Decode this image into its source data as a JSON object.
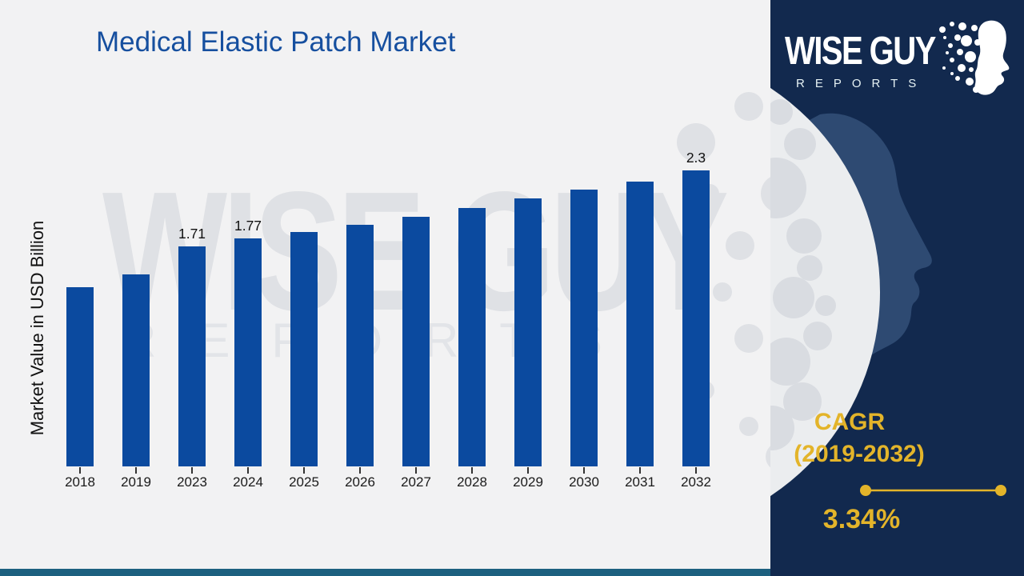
{
  "title": "Medical Elastic Patch Market",
  "y_axis_label": "Market Value in USD Billion",
  "logo": {
    "line1": "WISE GUY",
    "line2": "REPORTS"
  },
  "watermark": {
    "line1": "WISE GUY",
    "line2": "REPORTS"
  },
  "cagr": {
    "line1": "CAGR",
    "line2": "(2019-2032)",
    "value": "3.34%"
  },
  "colors": {
    "background": "#f2f2f3",
    "bar": "#0b4a9f",
    "title": "#164f9f",
    "panel_navy": "#12294e",
    "gold": "#e3b42a",
    "teal_stripe": "#1d607f",
    "watermark_gray": "#dfe1e5"
  },
  "chart_data": {
    "type": "bar",
    "title": "Medical Elastic Patch Market",
    "xlabel": "",
    "ylabel": "Market Value in USD Billion",
    "unit": "USD Billion",
    "categories": [
      "2018",
      "2019",
      "2023",
      "2024",
      "2025",
      "2026",
      "2027",
      "2028",
      "2029",
      "2030",
      "2031",
      "2032"
    ],
    "values": [
      1.39,
      1.49,
      1.71,
      1.77,
      1.82,
      1.88,
      1.94,
      2.01,
      2.08,
      2.15,
      2.21,
      2.3
    ],
    "bar_labels": [
      "",
      "",
      "1.71",
      "1.77",
      "",
      "",
      "",
      "",
      "",
      "",
      "",
      "2.3"
    ],
    "ylim": [
      0,
      2.45
    ],
    "grid": false,
    "legend": "none",
    "cagr_percent": 3.34,
    "cagr_period": "2019-2032"
  }
}
